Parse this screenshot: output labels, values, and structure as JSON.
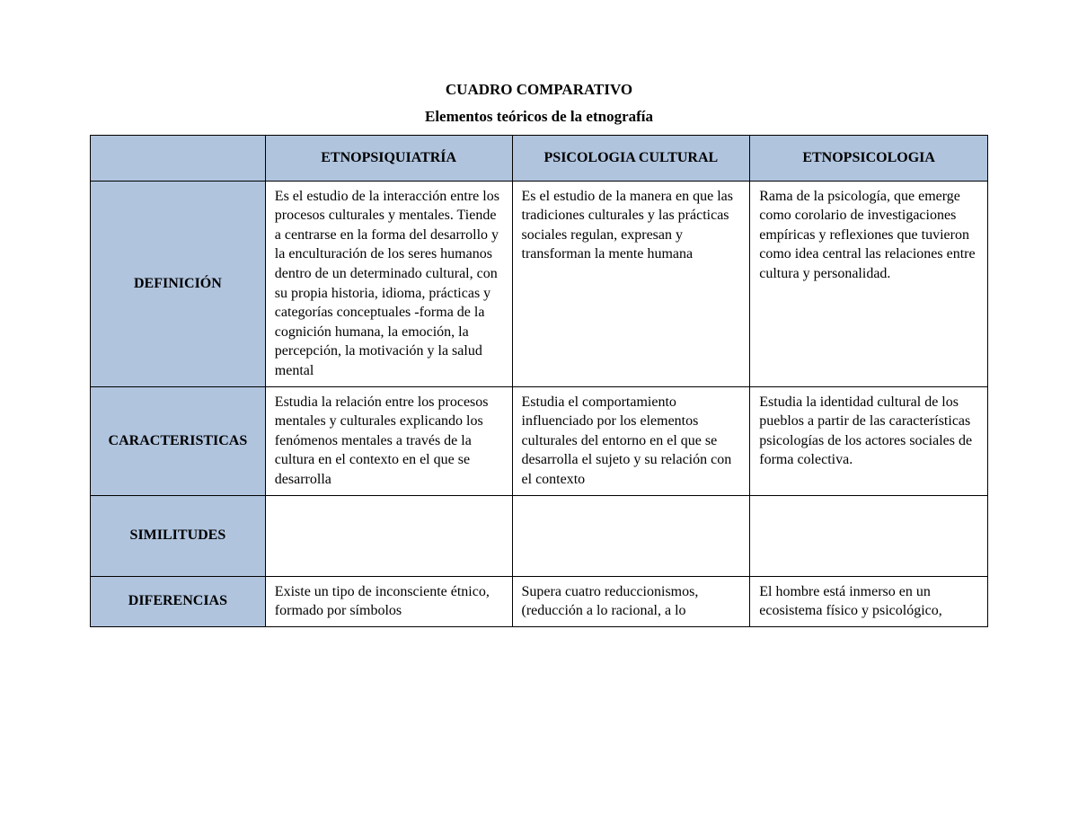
{
  "title_line1": "CUADRO COMPARATIVO",
  "title_line2": "Elementos teóricos de la etnografía",
  "table": {
    "type": "table",
    "header_bg": "#b0c4de",
    "rowlabel_bg": "#b0c4de",
    "border_color": "#000000",
    "text_color": "#000000",
    "background_color": "#ffffff",
    "font_family": "Times New Roman",
    "header_fontsize": 16,
    "cell_fontsize": 16,
    "col_widths_pct": [
      19.5,
      27.5,
      26.5,
      26.5
    ],
    "columns": [
      "",
      "ETNOPSIQUIATRÍA",
      "PSICOLOGIA CULTURAL",
      "ETNOPSICOLOGIA"
    ],
    "rows": [
      {
        "label": "DEFINICIÓN",
        "cells": [
          "Es el estudio de la interacción entre los procesos culturales y mentales. Tiende a centrarse en la forma del desarrollo y la enculturación de los seres humanos dentro de un determinado cultural, con su propia historia, idioma, prácticas y categorías conceptuales -forma de la cognición humana, la emoción, la percepción, la motivación y la salud mental",
          "Es el estudio de la manera en que las tradiciones culturales y las prácticas sociales regulan, expresan y transforman la mente humana",
          "Rama de la psicología, que emerge como corolario de investigaciones empíricas y reflexiones que tuvieron como idea central las relaciones entre cultura y personalidad."
        ]
      },
      {
        "label": "CARACTERISTICAS",
        "cells": [
          "Estudia la relación entre los procesos mentales y culturales explicando los fenómenos mentales a través de la cultura en el contexto en el que se desarrolla",
          "Estudia el comportamiento influenciado por los elementos culturales del entorno en el que se desarrolla el sujeto y su relación con el contexto",
          "Estudia la identidad cultural de los pueblos a partir de las características psicologías de los actores sociales de forma colectiva."
        ]
      },
      {
        "label": "SIMILITUDES",
        "cells": [
          "",
          "",
          ""
        ]
      },
      {
        "label": "DIFERENCIAS",
        "cells": [
          "Existe un tipo de inconsciente étnico, formado por símbolos",
          "Supera cuatro reduccionismos, (reducción a lo racional, a lo",
          "El hombre está inmerso en un ecosistema físico y psicológico,"
        ]
      }
    ]
  }
}
